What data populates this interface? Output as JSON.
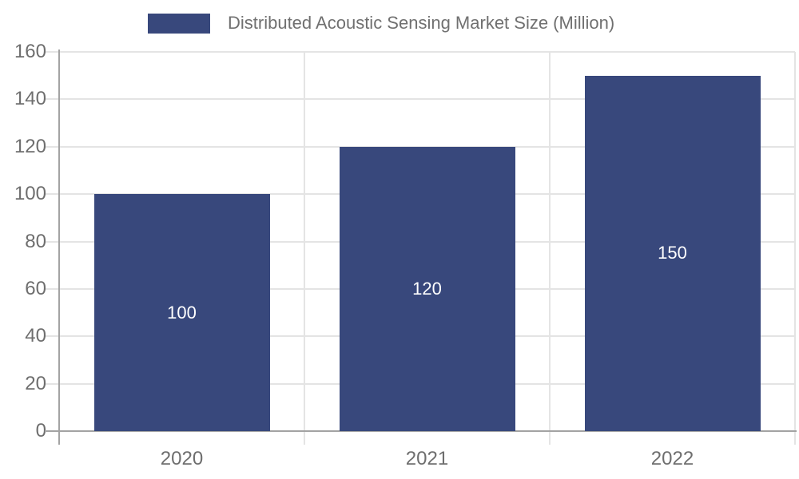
{
  "chart_data": {
    "type": "bar",
    "categories": [
      "2020",
      "2021",
      "2022"
    ],
    "values": [
      100,
      120,
      150
    ],
    "data_labels": [
      "100",
      "120",
      "150"
    ],
    "legend": [
      "Distributed Acoustic Sensing Market Size (Million)"
    ],
    "legend_position": "top",
    "title": "",
    "xlabel": "",
    "ylabel": "",
    "ylim": [
      0,
      160
    ],
    "yticks": [
      0,
      20,
      40,
      60,
      80,
      100,
      120,
      140,
      160
    ],
    "grid": true
  },
  "colors": {
    "bar": "#38487C",
    "grid": "#E4E4E4",
    "axis": "#A3A3A3",
    "tick_label": "#6E6E6E",
    "legend_label": "#707070",
    "value_label": "#FFFFFF",
    "background": "#FFFFFF"
  }
}
